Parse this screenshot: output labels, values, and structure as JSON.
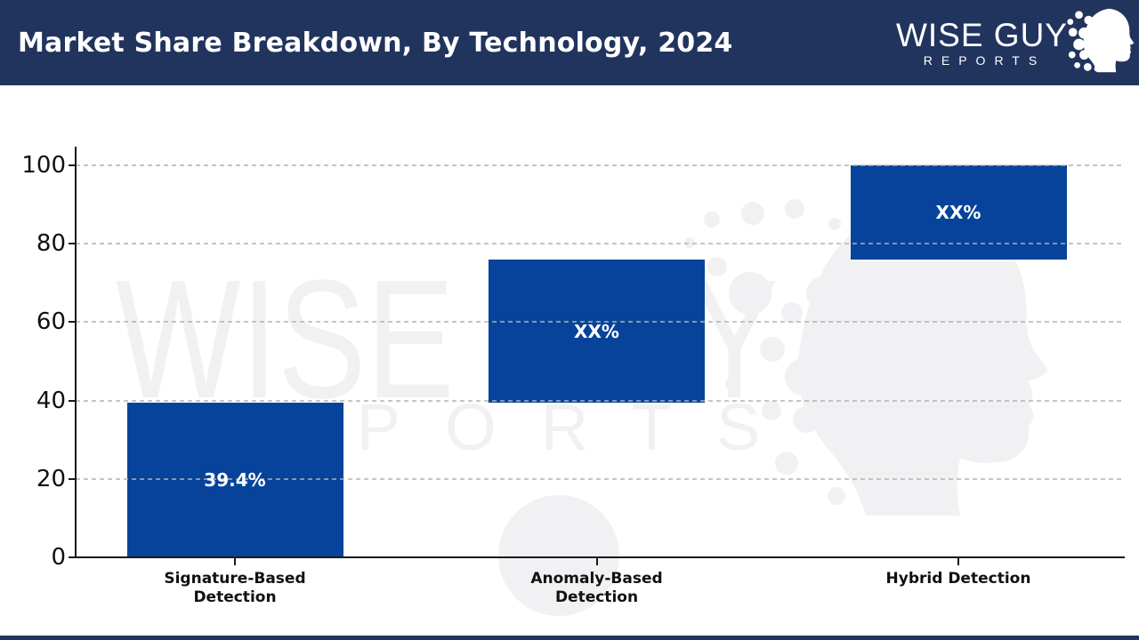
{
  "header": {
    "title": "Market Share Breakdown, By Technology, 2024",
    "logo": {
      "line1": "WISE GUY",
      "line2": "REPORTS",
      "icon": "dotted-head-icon"
    }
  },
  "watermark": {
    "line1": "WISE GUY",
    "line2": "REPORTS",
    "icon": "dotted-head-watermark"
  },
  "colors": {
    "header_bg": "#21345e",
    "footer_bg": "#21345e",
    "bar": "#07439b",
    "grid": "#d7d7d7",
    "axis": "#1a1a1a",
    "bar_label": "#ffffff",
    "watermark": "#f1f1f4",
    "title_text": "#ffffff"
  },
  "chart_data": {
    "type": "bar",
    "subtype": "waterfall",
    "title": "Market Share Breakdown, By Technology, 2024",
    "categories": [
      "Signature-Based\nDetection",
      "Anomaly-Based\nDetection",
      "Hybrid Detection"
    ],
    "bars": [
      {
        "category": "Signature-Based Detection",
        "start": 0,
        "end": 39.4,
        "label": "39.4%"
      },
      {
        "category": "Anomaly-Based Detection",
        "start": 39.4,
        "end": 76,
        "label": "XX%"
      },
      {
        "category": "Hybrid Detection",
        "start": 76,
        "end": 100,
        "label": "XX%"
      }
    ],
    "ylim": [
      0,
      100
    ],
    "yticks": [
      0,
      20,
      40,
      60,
      80,
      100
    ],
    "xlabel": "",
    "ylabel": "",
    "grid": "horizontal-dashed",
    "gridlines_above_bars": true,
    "legend": "none"
  }
}
